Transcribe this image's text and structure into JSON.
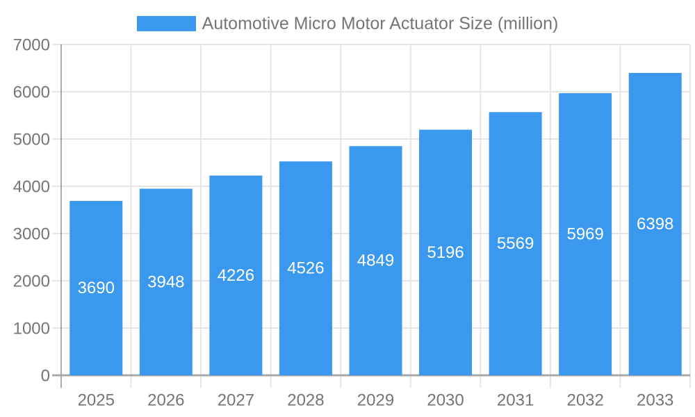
{
  "legend": {
    "position": "top-center"
  },
  "chart_data": {
    "type": "bar",
    "title": "Automotive Micro Motor Actuator Size (million)",
    "categories": [
      "2025",
      "2026",
      "2027",
      "2028",
      "2029",
      "2030",
      "2031",
      "2032",
      "2033"
    ],
    "series": [
      {
        "name": "Automotive Micro Motor Actuator Size (million)",
        "values": [
          3690,
          3948,
          4226,
          4526,
          4849,
          5196,
          5569,
          5969,
          6398
        ]
      }
    ],
    "xlabel": "",
    "ylabel": "",
    "ylim": [
      0,
      7000
    ],
    "ytick_step": 1000,
    "yticks": [
      0,
      1000,
      2000,
      3000,
      4000,
      5000,
      6000,
      7000
    ],
    "grid": true,
    "data_labels": "inside-center",
    "legend_position": "top-center",
    "colors": {
      "bar": "#3A99EE",
      "bar_label": "#FFFFFF",
      "axis_text": "#757575",
      "grid_line": "#E5E5E5",
      "axis_line": "#A8A8A8",
      "background": "#FFFFFF"
    }
  }
}
